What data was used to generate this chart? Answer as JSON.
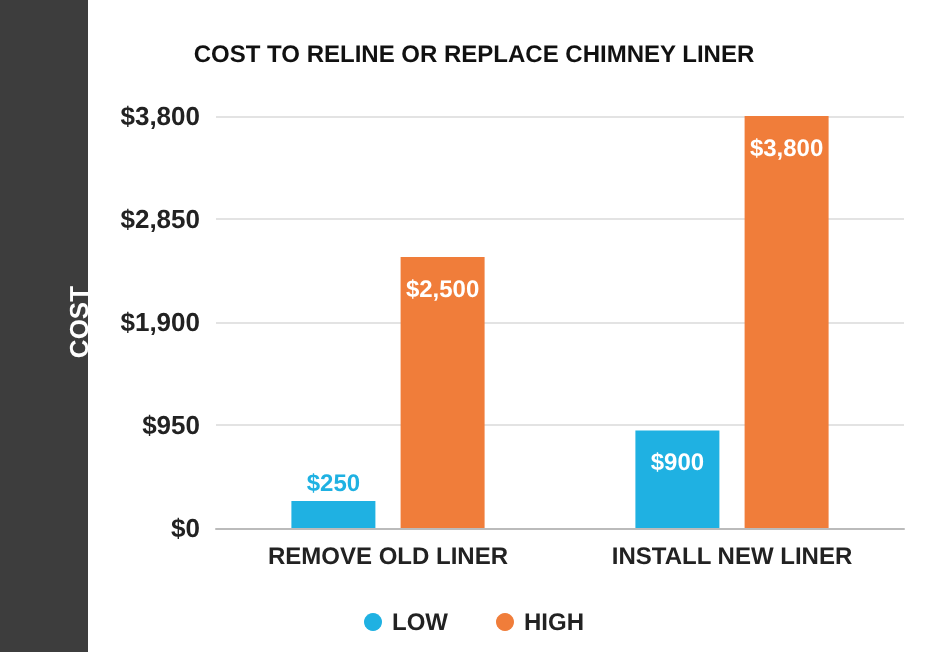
{
  "chart_data": {
    "type": "bar",
    "title": "COST TO RELINE OR REPLACE CHIMNEY LINER",
    "ylabel": "COST",
    "categories": [
      "REMOVE OLD LINER",
      "INSTALL NEW LINER"
    ],
    "series": [
      {
        "name": "LOW",
        "color": "#1fb1e2",
        "values": [
          250,
          900
        ],
        "value_labels": [
          "$250",
          "$900"
        ]
      },
      {
        "name": "HIGH",
        "color": "#f07d3a",
        "values": [
          2500,
          3800
        ],
        "value_labels": [
          "$2,500",
          "$3,800"
        ]
      }
    ],
    "ylim": [
      0,
      3800
    ],
    "yticks": [
      {
        "value": 0,
        "label": "$0"
      },
      {
        "value": 950,
        "label": "$950"
      },
      {
        "value": 1900,
        "label": "$1,900"
      },
      {
        "value": 2850,
        "label": "$2,850"
      },
      {
        "value": 3800,
        "label": "$3,800"
      }
    ],
    "grid": "y",
    "legend": "bottom",
    "marker": "circle"
  }
}
